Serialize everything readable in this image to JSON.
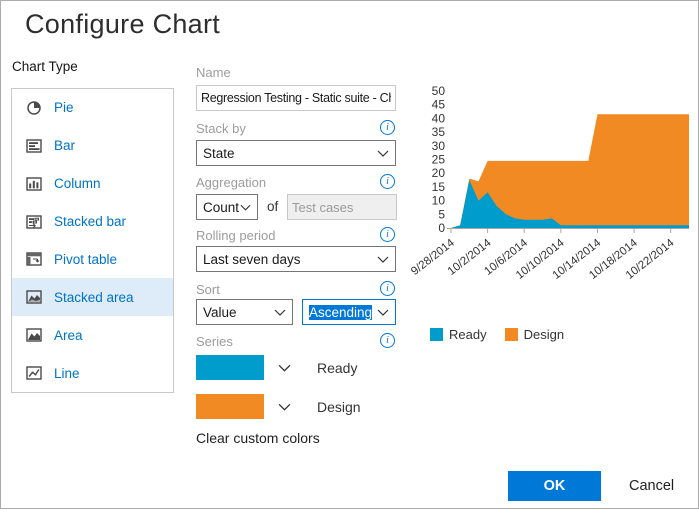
{
  "dialog": {
    "title": "Configure Chart"
  },
  "chart_type": {
    "label": "Chart Type",
    "selected": "Stacked area",
    "items": [
      {
        "label": "Pie",
        "icon": "pie-chart-icon"
      },
      {
        "label": "Bar",
        "icon": "bar-chart-icon"
      },
      {
        "label": "Column",
        "icon": "column-chart-icon"
      },
      {
        "label": "Stacked bar",
        "icon": "stacked-bar-chart-icon"
      },
      {
        "label": "Pivot table",
        "icon": "pivot-table-icon"
      },
      {
        "label": "Stacked area",
        "icon": "stacked-area-chart-icon"
      },
      {
        "label": "Area",
        "icon": "area-chart-icon"
      },
      {
        "label": "Line",
        "icon": "line-chart-icon"
      }
    ]
  },
  "form": {
    "name": {
      "label": "Name",
      "value": "Regression Testing - Static suite - Ch"
    },
    "stack_by": {
      "label": "Stack by",
      "value": "State"
    },
    "aggregation": {
      "label": "Aggregation",
      "value": "Count",
      "of_label": "of",
      "field_value": "Test cases"
    },
    "rolling_period": {
      "label": "Rolling period",
      "value": "Last seven days"
    },
    "sort": {
      "label": "Sort",
      "field": "Value",
      "direction": "Ascending"
    },
    "series": {
      "label": "Series"
    },
    "clear_colors_label": "Clear custom colors"
  },
  "icons": {
    "info_glyph": "i"
  },
  "colors": {
    "accent": "#0078D7",
    "link_blue": "#0072C6",
    "selected_row_bg": "#DEECF9",
    "chart_blue": "#009CCC",
    "chart_orange": "#F28A24"
  },
  "chart_data": {
    "type": "area",
    "stacked": true,
    "title": "",
    "xlabel": "",
    "ylabel": "",
    "grid": false,
    "legend_position": "bottom",
    "ylim": [
      0,
      50
    ],
    "y_ticks": [
      0,
      5,
      10,
      15,
      20,
      25,
      30,
      35,
      40,
      45,
      50
    ],
    "x": [
      "9/28/2014",
      "9/29/2014",
      "9/30/2014",
      "10/1/2014",
      "10/2/2014",
      "10/3/2014",
      "10/4/2014",
      "10/5/2014",
      "10/6/2014",
      "10/7/2014",
      "10/8/2014",
      "10/9/2014",
      "10/10/2014",
      "10/11/2014",
      "10/12/2014",
      "10/13/2014",
      "10/14/2014",
      "10/15/2014",
      "10/16/2014",
      "10/17/2014",
      "10/18/2014",
      "10/19/2014",
      "10/20/2014",
      "10/21/2014",
      "10/22/2014",
      "10/23/2014",
      "10/24/2014"
    ],
    "x_tick_labels": [
      "9/28/2014",
      "10/2/2014",
      "10/6/2014",
      "10/10/2014",
      "10/14/2014",
      "10/18/2014",
      "10/22/2014"
    ],
    "series": [
      {
        "name": "Ready",
        "color": "#009CCC",
        "values": [
          0,
          1,
          17.5,
          10,
          13,
          8,
          5,
          3.5,
          3,
          3,
          3,
          3.5,
          1,
          1,
          1,
          1,
          1,
          1,
          1,
          1,
          1,
          1,
          1,
          1,
          1,
          1,
          1
        ]
      },
      {
        "name": "Design",
        "color": "#F28A24",
        "values": [
          0,
          0,
          0.5,
          7,
          11.5,
          16.5,
          19.5,
          21,
          21.5,
          21.5,
          21.5,
          21,
          23.5,
          23.5,
          23.5,
          23.5,
          40.5,
          40.5,
          40.5,
          40.5,
          40.5,
          40.5,
          40.5,
          40.5,
          40.5,
          40.5,
          40.5
        ]
      }
    ]
  },
  "footer": {
    "ok_label": "OK",
    "cancel_label": "Cancel"
  }
}
